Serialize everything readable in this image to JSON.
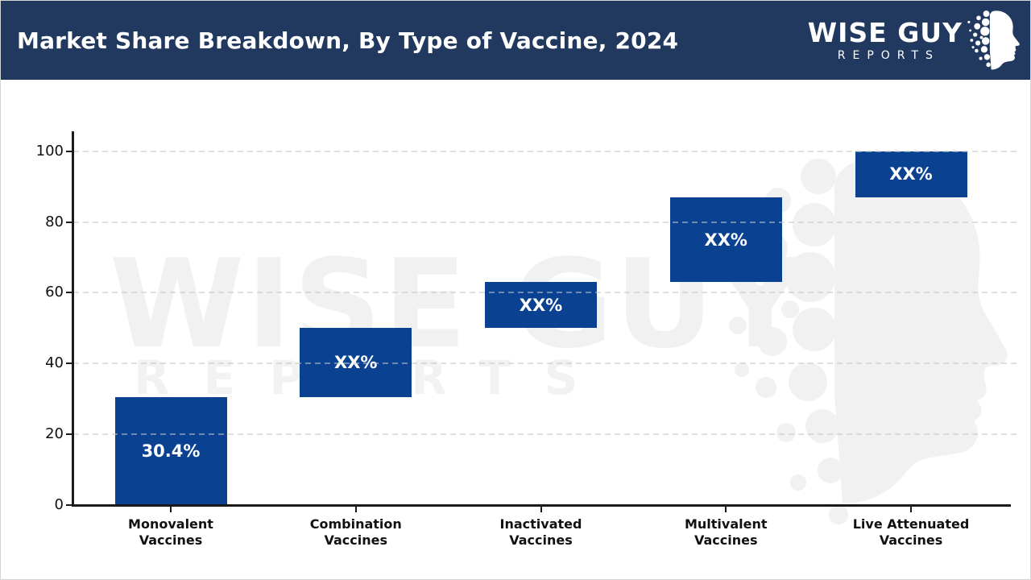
{
  "header": {
    "title": "Market Share Breakdown, By Type of Vaccine, 2024",
    "logo": {
      "brand_top": "WISE GUY",
      "brand_bottom": "REPORTS",
      "head_icon": "dotted-head-profile-icon"
    }
  },
  "watermark": {
    "line1": "WISE GUY",
    "line2": "REPORTS",
    "head_icon": "dotted-head-profile-watermark"
  },
  "colors": {
    "header_bg": "#21385f",
    "bar": "#0a4191",
    "bar_label": "#ffffff",
    "grid": "#c5c5c5",
    "axis": "#1a1a1a",
    "watermark": "#f1f1f1"
  },
  "chart_data": {
    "type": "bar",
    "subtype": "floating-segment-waterfall",
    "title": "Market Share Breakdown, By Type of Vaccine, 2024",
    "xlabel": "",
    "ylabel": "",
    "ylim": [
      0,
      106
    ],
    "y_ticks": [
      0,
      20,
      40,
      60,
      80,
      100
    ],
    "grid": "horizontal-dashed",
    "legend": "none",
    "categories": [
      "Monovalent\nVaccines",
      "Combination\nVaccines",
      "Inactivated\nVaccines",
      "Multivalent\nVaccines",
      "Live Attenuated\nVaccines"
    ],
    "segments": [
      {
        "category": "Monovalent\nVaccines",
        "start": 0,
        "end": 30.4,
        "label": "30.4%"
      },
      {
        "category": "Combination\nVaccines",
        "start": 30.4,
        "end": 50,
        "label": "XX%"
      },
      {
        "category": "Inactivated\nVaccines",
        "start": 50,
        "end": 63,
        "label": "XX%"
      },
      {
        "category": "Multivalent\nVaccines",
        "start": 63,
        "end": 87,
        "label": "XX%"
      },
      {
        "category": "Live Attenuated\nVaccines",
        "start": 87,
        "end": 100,
        "label": "XX%"
      }
    ]
  }
}
